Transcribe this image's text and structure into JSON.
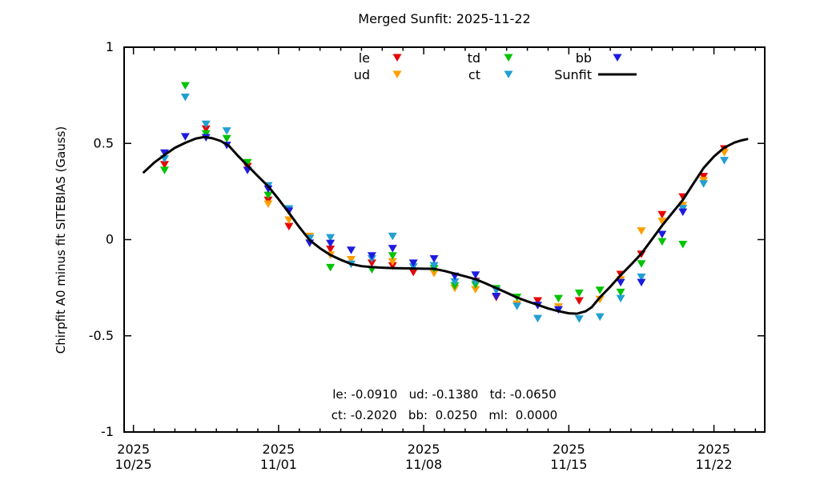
{
  "page": {
    "background": "#ffffff"
  },
  "chart_data": {
    "type": "scatter",
    "title": "Merged Sunfit: 2025-11-22",
    "xlabel": "",
    "ylabel": "Chirpfit A0 minus fit SITEBIAS (Gauss)",
    "x_axis": {
      "epoch": "days since 2025-10-25",
      "range_days": [
        -0.45,
        30.45
      ],
      "minor_tick_every_days": 1,
      "major_ticks": [
        {
          "day": 0,
          "year": "2025",
          "label": "10/25"
        },
        {
          "day": 7,
          "year": "2025",
          "label": "11/01"
        },
        {
          "day": 14,
          "year": "2025",
          "label": "11/08"
        },
        {
          "day": 21,
          "year": "2025",
          "label": "11/15"
        },
        {
          "day": 28,
          "year": "2025",
          "label": "11/22"
        }
      ]
    },
    "y_axis": {
      "range": [
        -1,
        1
      ],
      "ticks": [
        {
          "value": 1,
          "label": "1"
        },
        {
          "value": 0.5,
          "label": "0.5"
        },
        {
          "value": 0,
          "label": "0"
        },
        {
          "value": -0.5,
          "label": "-0.5"
        },
        {
          "value": -1,
          "label": "-1"
        }
      ]
    },
    "legend": {
      "rows": [
        [
          "le",
          "td",
          "bb"
        ],
        [
          "ud",
          "ct",
          "Sunfit"
        ]
      ]
    },
    "series": [
      {
        "name": "le",
        "color": "#e80000",
        "marker": "triangle-down",
        "points": [
          [
            1.5,
            0.39
          ],
          [
            3.5,
            0.575
          ],
          [
            5.5,
            0.38
          ],
          [
            6.5,
            0.205
          ],
          [
            7.5,
            0.068
          ],
          [
            9.5,
            -0.05
          ],
          [
            11.5,
            -0.122
          ],
          [
            12.5,
            -0.136
          ],
          [
            13.5,
            -0.17
          ],
          [
            16.5,
            -0.216
          ],
          [
            17.5,
            -0.3
          ],
          [
            19.5,
            -0.318
          ],
          [
            21.5,
            -0.318
          ],
          [
            23.5,
            -0.181
          ],
          [
            24.5,
            -0.076
          ],
          [
            25.5,
            0.13
          ],
          [
            26.5,
            0.222
          ],
          [
            27.5,
            0.328
          ],
          [
            28.5,
            0.472
          ]
        ]
      },
      {
        "name": "ud",
        "color": "#ff9e00",
        "marker": "triangle-down",
        "points": [
          [
            6.5,
            0.185
          ],
          [
            7.5,
            0.102
          ],
          [
            8.5,
            0.017
          ],
          [
            9.5,
            -0.08
          ],
          [
            10.5,
            -0.104
          ],
          [
            12.5,
            -0.115
          ],
          [
            14.5,
            -0.175
          ],
          [
            15.5,
            -0.253
          ],
          [
            16.5,
            -0.26
          ],
          [
            18.5,
            -0.335
          ],
          [
            20.5,
            -0.35
          ],
          [
            22.5,
            -0.311
          ],
          [
            23.5,
            -0.209
          ],
          [
            24.5,
            0.045
          ],
          [
            25.5,
            0.095
          ],
          [
            26.5,
            0.178
          ],
          [
            27.5,
            0.307
          ],
          [
            28.5,
            0.452
          ]
        ]
      },
      {
        "name": "td",
        "color": "#00c400",
        "marker": "triangle-down",
        "points": [
          [
            1.5,
            0.36
          ],
          [
            2.5,
            0.8
          ],
          [
            3.5,
            0.55
          ],
          [
            4.5,
            0.525
          ],
          [
            5.5,
            0.4
          ],
          [
            6.5,
            0.23
          ],
          [
            8.5,
            0.005
          ],
          [
            9.5,
            -0.145
          ],
          [
            11.5,
            -0.156
          ],
          [
            12.5,
            -0.084
          ],
          [
            14.5,
            -0.15
          ],
          [
            15.5,
            -0.24
          ],
          [
            16.5,
            -0.235
          ],
          [
            17.5,
            -0.255
          ],
          [
            18.5,
            -0.3
          ],
          [
            20.5,
            -0.306
          ],
          [
            21.5,
            -0.278
          ],
          [
            22.5,
            -0.263
          ],
          [
            23.5,
            -0.274
          ],
          [
            24.5,
            -0.126
          ],
          [
            25.5,
            -0.011
          ],
          [
            26.5,
            -0.025
          ]
        ]
      },
      {
        "name": "ct",
        "color": "#219fd2",
        "marker": "triangle-down",
        "points": [
          [
            1.5,
            0.42
          ],
          [
            2.5,
            0.74
          ],
          [
            3.5,
            0.6
          ],
          [
            4.5,
            0.565
          ],
          [
            6.5,
            0.28
          ],
          [
            7.5,
            0.16
          ],
          [
            8.5,
            0.007
          ],
          [
            9.5,
            0.01
          ],
          [
            10.5,
            -0.128
          ],
          [
            11.5,
            -0.1
          ],
          [
            12.5,
            0.017
          ],
          [
            13.5,
            -0.142
          ],
          [
            14.5,
            -0.135
          ],
          [
            15.5,
            -0.22
          ],
          [
            16.5,
            -0.22
          ],
          [
            17.5,
            -0.265
          ],
          [
            18.5,
            -0.346
          ],
          [
            19.5,
            -0.41
          ],
          [
            21.5,
            -0.412
          ],
          [
            22.5,
            -0.402
          ],
          [
            23.5,
            -0.306
          ],
          [
            24.5,
            -0.195
          ],
          [
            26.5,
            0.161
          ],
          [
            27.5,
            0.29
          ],
          [
            28.5,
            0.411
          ]
        ]
      },
      {
        "name": "bb",
        "color": "#1c1ce0",
        "marker": "triangle-down",
        "points": [
          [
            1.5,
            0.45
          ],
          [
            2.5,
            0.535
          ],
          [
            3.5,
            0.53
          ],
          [
            4.5,
            0.49
          ],
          [
            5.5,
            0.36
          ],
          [
            6.5,
            0.263
          ],
          [
            7.5,
            0.148
          ],
          [
            8.5,
            -0.018
          ],
          [
            9.5,
            -0.02
          ],
          [
            10.5,
            -0.055
          ],
          [
            11.5,
            -0.084
          ],
          [
            12.5,
            -0.046
          ],
          [
            13.5,
            -0.122
          ],
          [
            14.5,
            -0.1
          ],
          [
            15.5,
            -0.19
          ],
          [
            16.5,
            -0.184
          ],
          [
            17.5,
            -0.295
          ],
          [
            19.5,
            -0.342
          ],
          [
            20.5,
            -0.365
          ],
          [
            23.5,
            -0.223
          ],
          [
            24.5,
            -0.223
          ],
          [
            25.5,
            0.027
          ],
          [
            26.5,
            0.143
          ]
        ]
      },
      {
        "name": "Sunfit",
        "color": "#000000",
        "type": "line",
        "points": [
          [
            0.5,
            0.35
          ],
          [
            1,
            0.4
          ],
          [
            1.5,
            0.44
          ],
          [
            2,
            0.477
          ],
          [
            2.5,
            0.503
          ],
          [
            3,
            0.525
          ],
          [
            3.4,
            0.533
          ],
          [
            3.8,
            0.527
          ],
          [
            4.2,
            0.513
          ],
          [
            4.6,
            0.488
          ],
          [
            5,
            0.44
          ],
          [
            5.5,
            0.385
          ],
          [
            6,
            0.33
          ],
          [
            6.5,
            0.277
          ],
          [
            7,
            0.21
          ],
          [
            7.5,
            0.139
          ],
          [
            8,
            0.065
          ],
          [
            8.5,
            -0.003
          ],
          [
            9,
            -0.045
          ],
          [
            9.5,
            -0.08
          ],
          [
            10,
            -0.105
          ],
          [
            10.5,
            -0.127
          ],
          [
            11,
            -0.138
          ],
          [
            11.5,
            -0.143
          ],
          [
            12,
            -0.146
          ],
          [
            12.5,
            -0.148
          ],
          [
            13,
            -0.149
          ],
          [
            13.5,
            -0.15
          ],
          [
            14,
            -0.151
          ],
          [
            14.5,
            -0.152
          ],
          [
            15,
            -0.163
          ],
          [
            15.5,
            -0.177
          ],
          [
            16,
            -0.191
          ],
          [
            16.5,
            -0.206
          ],
          [
            17,
            -0.228
          ],
          [
            17.5,
            -0.252
          ],
          [
            18,
            -0.276
          ],
          [
            18.5,
            -0.301
          ],
          [
            19,
            -0.321
          ],
          [
            19.5,
            -0.339
          ],
          [
            20,
            -0.358
          ],
          [
            20.5,
            -0.372
          ],
          [
            21,
            -0.383
          ],
          [
            21.4,
            -0.385
          ],
          [
            21.8,
            -0.373
          ],
          [
            22.1,
            -0.352
          ],
          [
            22.5,
            -0.3
          ],
          [
            23,
            -0.245
          ],
          [
            23.5,
            -0.185
          ],
          [
            24,
            -0.13
          ],
          [
            24.5,
            -0.073
          ],
          [
            25,
            0
          ],
          [
            25.5,
            0.073
          ],
          [
            26,
            0.14
          ],
          [
            26.5,
            0.206
          ],
          [
            27,
            0.29
          ],
          [
            27.5,
            0.372
          ],
          [
            28,
            0.432
          ],
          [
            28.5,
            0.478
          ],
          [
            29,
            0.505
          ],
          [
            29.3,
            0.515
          ],
          [
            29.6,
            0.522
          ]
        ]
      }
    ]
  },
  "annotation": {
    "line1": "le: -0.0910   ud: -0.1380   td: -0.0650",
    "line2": "ct: -0.2020   bb:  0.0250   ml:  0.0000",
    "values": {
      "le": -0.091,
      "ud": -0.138,
      "td": -0.065,
      "ct": -0.202,
      "bb": 0.025,
      "ml": 0.0
    }
  }
}
